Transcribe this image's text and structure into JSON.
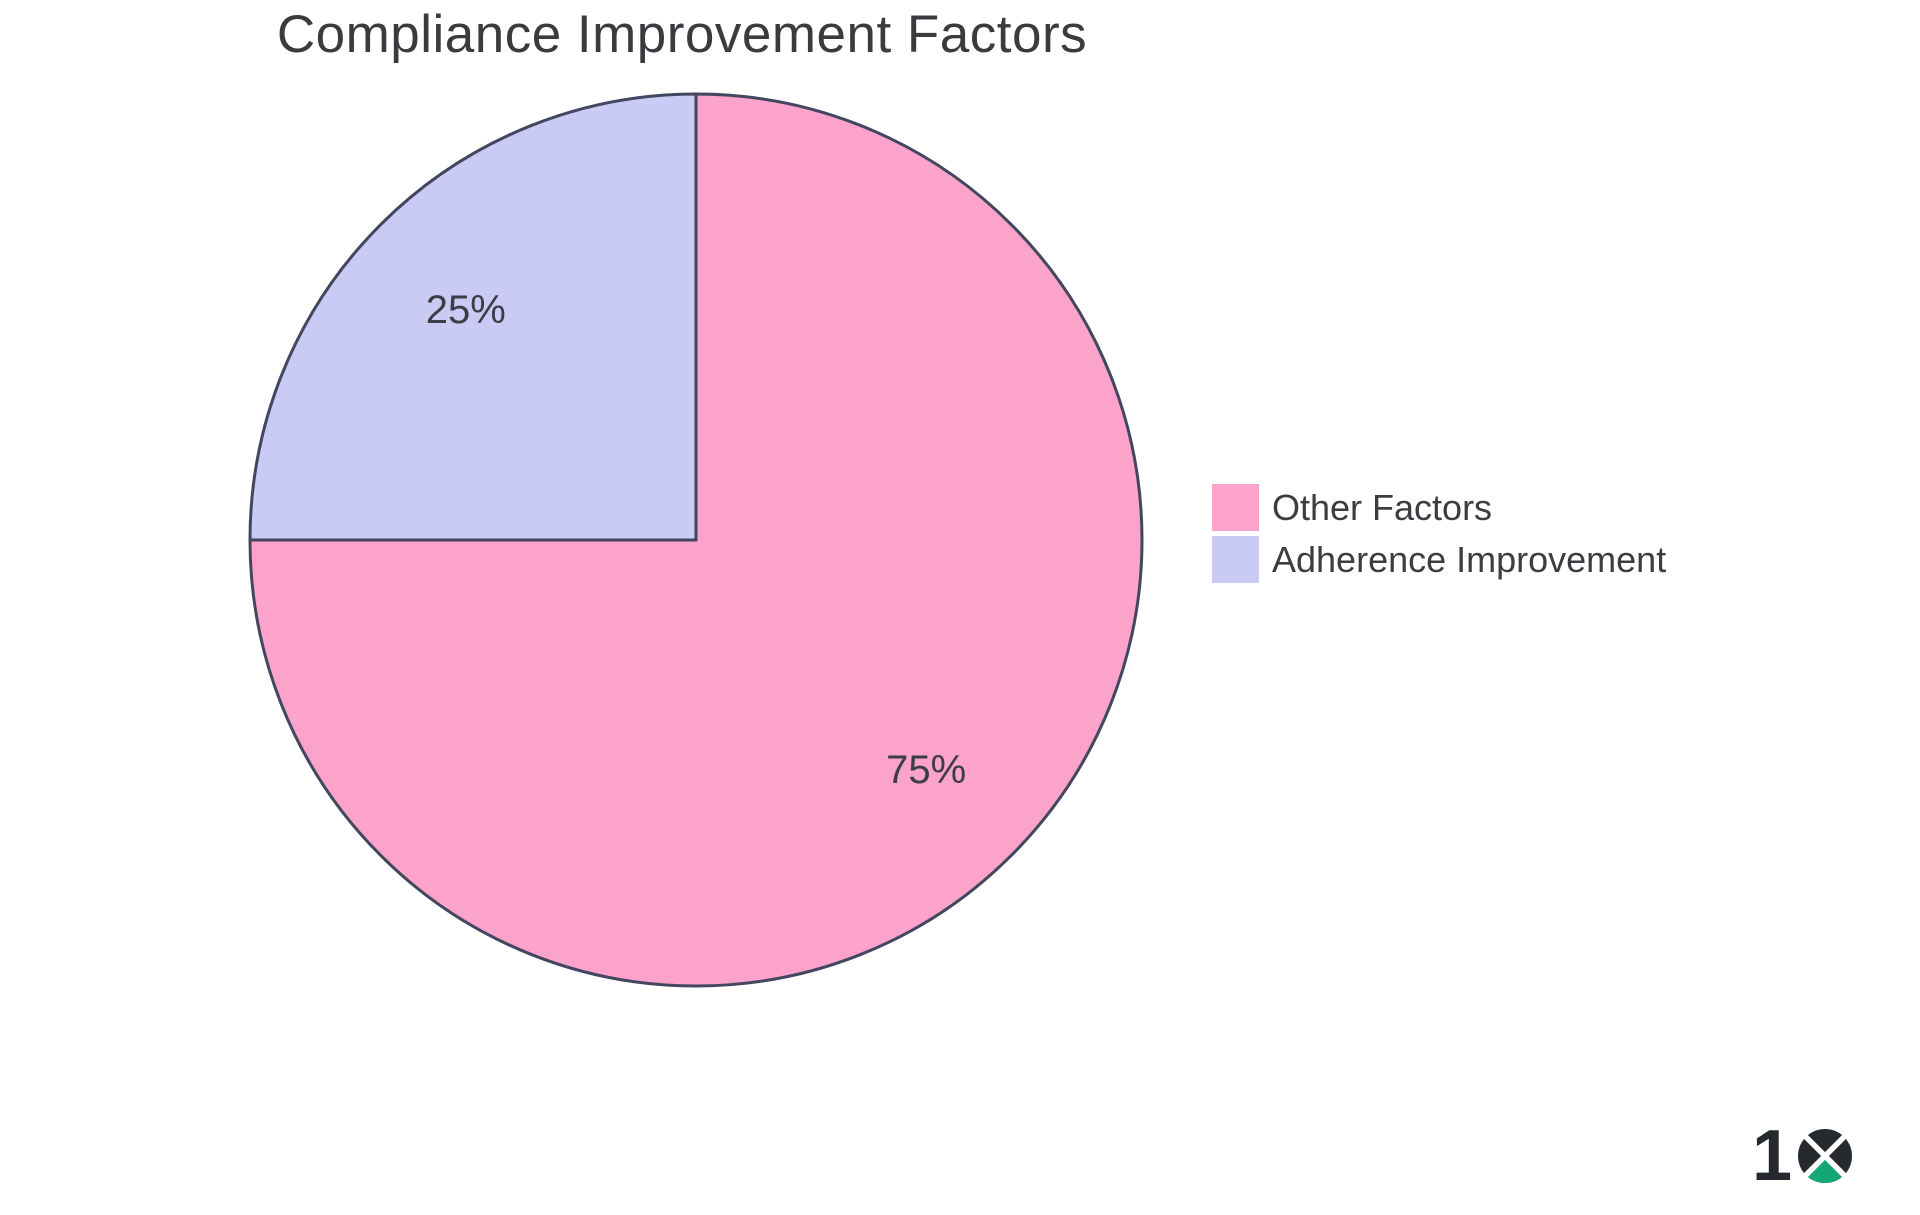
{
  "chart_data": {
    "type": "pie",
    "title": "Compliance Improvement Factors",
    "labels": [
      "Other Factors",
      "Adherence Improvement"
    ],
    "values": [
      75,
      25
    ],
    "slice_labels": [
      "75%",
      "25%"
    ],
    "colors": [
      "#FBA3CA",
      "#CACBF4"
    ],
    "slice_border_color": "#42465E",
    "slice_label_color": "#3B3E46",
    "title_color": "#3A3B3F",
    "start_angle_deg": 0,
    "direction": "clockwise",
    "grid": false,
    "legend_position": "right",
    "background": "#FFFFFF"
  },
  "legend": {
    "items": [
      {
        "label": "Other Factors",
        "color": "#FBA3CA"
      },
      {
        "label": "Adherence Improvement",
        "color": "#CACBF4"
      }
    ]
  },
  "logo": {
    "text": "1",
    "mark_dark_color": "#26292E",
    "mark_accent_color": "#13A873"
  }
}
